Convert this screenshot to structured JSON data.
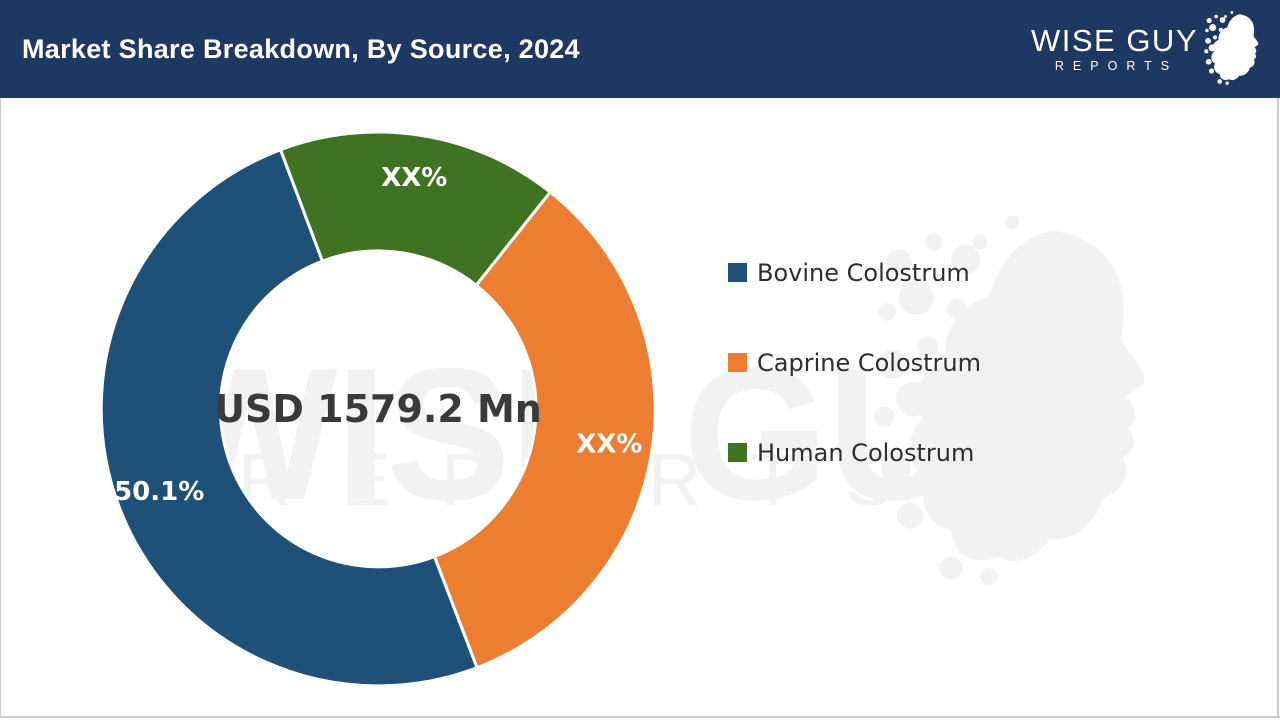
{
  "header": {
    "title": "Market Share Breakdown, By Source, 2024",
    "bg_color": "#1f3863",
    "logo": {
      "line1": "WISE GUY",
      "line2": "REPORTS"
    }
  },
  "watermark": {
    "line1": "WISE GUY",
    "line2": "REPORTS"
  },
  "chart_data": {
    "type": "donut",
    "title": "Market Share Breakdown, By Source, 2024",
    "center_label": "USD 1579.2 Mn",
    "categories": [
      "Bovine Colostrum",
      "Caprine Colostrum",
      "Human Colostrum"
    ],
    "values": [
      50.1,
      33.5,
      16.4
    ],
    "slice_labels": [
      "50.1%",
      "XX%",
      "XX%"
    ],
    "colors": [
      "#1f5078",
      "#ed7d31",
      "#3f7321"
    ],
    "start_angle": 110.6,
    "direction": "counterclockwise",
    "inner_radius_ratio": 0.57,
    "legend_position": "right"
  }
}
